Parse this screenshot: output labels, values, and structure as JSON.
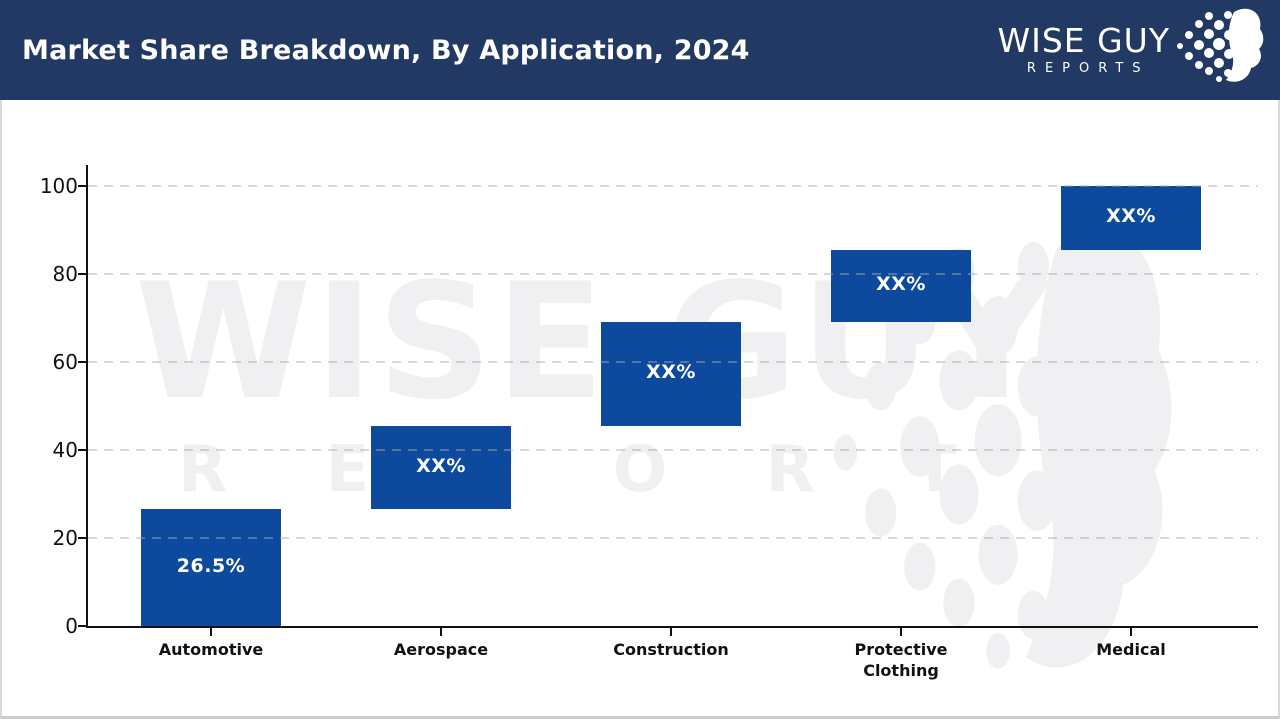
{
  "header": {
    "title": "Market Share Breakdown, By Application, 2024",
    "logo": {
      "line1": "WISE GUY",
      "line2": "REPORTS"
    }
  },
  "watermark": {
    "line1": "WISE GUY",
    "line2": "R E P O R T S"
  },
  "colors": {
    "header_navy": "#223963",
    "bar_blue": "#0d4a9e",
    "bar_label_white": "#ffffff",
    "watermark_gray": "#f0f0f2"
  },
  "chart_data": {
    "type": "bar",
    "subtype": "waterfall",
    "title": "Market Share Breakdown, By Application, 2024",
    "categories": [
      "Automotive",
      "Aerospace",
      "Construction",
      "Protective Clothing",
      "Medical"
    ],
    "series": [
      {
        "name": "Market share (%)",
        "segments": [
          {
            "category": "Automotive",
            "start": 0,
            "end": 26.5,
            "label": "26.5%"
          },
          {
            "category": "Aerospace",
            "start": 26.5,
            "end": 45.5,
            "label": "XX%"
          },
          {
            "category": "Construction",
            "start": 45.5,
            "end": 69,
            "label": "XX%"
          },
          {
            "category": "Protective Clothing",
            "start": 69,
            "end": 85.5,
            "label": "XX%"
          },
          {
            "category": "Medical",
            "start": 85.5,
            "end": 100,
            "label": "XX%"
          }
        ]
      }
    ],
    "xlabel": "",
    "ylabel": "",
    "ylim": [
      0,
      105
    ],
    "yticks": [
      0,
      20,
      40,
      60,
      80,
      100
    ],
    "grid": "horizontal-dashed",
    "legend": "none",
    "bar_color": "#0d4a9e",
    "bar_label_color": "#ffffff"
  }
}
